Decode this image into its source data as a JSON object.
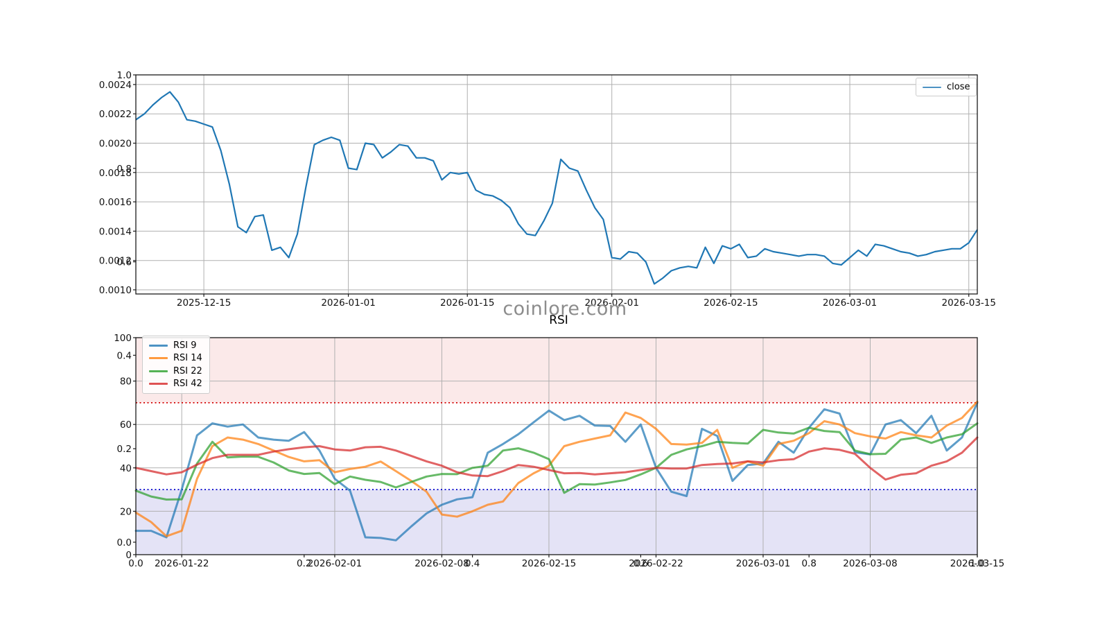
{
  "figure": {
    "watermark": "coinlore.com",
    "rsi_title": "RSI",
    "background": "#ffffff",
    "grid_color": "#b0b0b0",
    "spine_color": "#1a1a1a",
    "tick_label_color": "#111111",
    "overlay_axis": {
      "left_tick_labels": [
        "1.0",
        "0.8",
        "0.6",
        "0.4",
        "0.2",
        "0.0"
      ],
      "bottom_tick_labels": [
        "0.0",
        "0.2",
        "0.4",
        "0.6",
        "0.8",
        "1.0"
      ]
    }
  },
  "chart_data": [
    {
      "type": "line",
      "title": "",
      "legend_position": "upper right",
      "grid": true,
      "ylim": [
        0.000972,
        0.002466
      ],
      "y_tick_labels": [
        "0.0010",
        "0.0012",
        "0.0014",
        "0.0016",
        "0.0018",
        "0.0020",
        "0.0022",
        "0.0024"
      ],
      "y_tick_values": [
        0.001,
        0.0012,
        0.0014,
        0.0016,
        0.0018,
        0.002,
        0.0022,
        0.0024
      ],
      "x_tick_labels": [
        "2025-12-15",
        "2026-01-01",
        "2026-01-15",
        "2026-02-01",
        "2026-02-15",
        "2026-03-01",
        "2026-03-15"
      ],
      "x_tick_index": [
        8,
        25,
        39,
        56,
        70,
        84,
        98
      ],
      "x_start_date": "2025-12-07",
      "series": [
        {
          "name": "close",
          "color": "#1f77b4",
          "width": 2.2,
          "opacity": 1,
          "values": [
            0.00216,
            0.0022,
            0.00226,
            0.00231,
            0.00235,
            0.00228,
            0.00216,
            0.00215,
            0.00213,
            0.00211,
            0.00195,
            0.00172,
            0.00143,
            0.00139,
            0.0015,
            0.00151,
            0.00127,
            0.00129,
            0.00122,
            0.00138,
            0.0017,
            0.00199,
            0.00202,
            0.00204,
            0.00202,
            0.00183,
            0.00182,
            0.002,
            0.00199,
            0.0019,
            0.00194,
            0.00199,
            0.00198,
            0.0019,
            0.0019,
            0.00188,
            0.00175,
            0.0018,
            0.00179,
            0.0018,
            0.00168,
            0.00165,
            0.00164,
            0.00161,
            0.00156,
            0.00145,
            0.00138,
            0.00137,
            0.00147,
            0.00159,
            0.00189,
            0.00183,
            0.00181,
            0.00168,
            0.00156,
            0.00148,
            0.00122,
            0.00121,
            0.00126,
            0.00125,
            0.00119,
            0.00104,
            0.00108,
            0.00113,
            0.00115,
            0.00116,
            0.00115,
            0.00129,
            0.00118,
            0.0013,
            0.00128,
            0.00131,
            0.00122,
            0.00123,
            0.00128,
            0.00126,
            0.00125,
            0.00124,
            0.00123,
            0.00124,
            0.00124,
            0.00123,
            0.00118,
            0.00117,
            0.00122,
            0.00127,
            0.00123,
            0.00131,
            0.0013,
            0.00128,
            0.00126,
            0.00125,
            0.00123,
            0.00124,
            0.00126,
            0.00127,
            0.00128,
            0.00128,
            0.00132,
            0.00141
          ]
        }
      ]
    },
    {
      "type": "line",
      "title": "RSI",
      "legend_position": "upper left",
      "grid": true,
      "ylim": [
        0,
        100
      ],
      "y_tick_labels": [
        "0",
        "20",
        "40",
        "60",
        "80",
        "100"
      ],
      "y_tick_values": [
        0,
        20,
        40,
        60,
        80,
        100
      ],
      "x_tick_labels": [
        "2026-01-22",
        "2026-02-01",
        "2026-02-08",
        "2026-02-15",
        "2026-02-22",
        "2026-03-01",
        "2026-03-08",
        "2026-03-15"
      ],
      "x_tick_index": [
        3,
        13,
        20,
        27,
        34,
        41,
        48,
        55
      ],
      "x_start_date": "2026-01-19",
      "overbought_level": 70,
      "oversold_level": 30,
      "overbought_band_color": "#fbe9e9",
      "oversold_band_color": "#e4e3f6",
      "overbought_line_color": "#d40000",
      "oversold_line_color": "#0000cc",
      "series": [
        {
          "name": "RSI 9",
          "color": "#1f77b4",
          "width": 3,
          "opacity": 0.72,
          "values": [
            11,
            11,
            8,
            30,
            55,
            60.5,
            59,
            60,
            54,
            53,
            52.5,
            56.5,
            48,
            35,
            29.5,
            8,
            7.7,
            6.6,
            13,
            19,
            23,
            25.5,
            26.5,
            47,
            51,
            55.5,
            61,
            66.4,
            62,
            64,
            59.5,
            59.3,
            52,
            60,
            40,
            29,
            27,
            58,
            54.7,
            34,
            41.3,
            42,
            52,
            47,
            58.5,
            67,
            65,
            47.2,
            46.2,
            60,
            62,
            56,
            64,
            48,
            54,
            70
          ]
        },
        {
          "name": "RSI 14",
          "color": "#ff7f0e",
          "width": 3,
          "opacity": 0.72,
          "values": [
            19.4,
            15,
            8.5,
            11,
            35,
            50,
            54,
            53,
            51,
            48,
            45,
            43,
            43.5,
            38,
            39.5,
            40.5,
            42.9,
            38.5,
            34,
            29,
            18.5,
            17.5,
            20,
            23,
            24.5,
            33,
            37.5,
            41,
            50,
            52,
            53.5,
            55,
            65.5,
            63,
            58,
            51,
            50.7,
            51.5,
            57.5,
            40,
            43,
            41,
            51,
            52.5,
            56,
            61.5,
            60,
            56,
            54.5,
            53.5,
            56.5,
            55,
            54,
            59.5,
            63,
            70.5
          ]
        },
        {
          "name": "RSI 22",
          "color": "#2ca02c",
          "width": 3,
          "opacity": 0.72,
          "values": [
            29.5,
            26.8,
            25.4,
            25.5,
            42,
            52,
            44.8,
            45.2,
            45.1,
            42.5,
            38.8,
            37.2,
            37.6,
            32.5,
            36,
            34.5,
            33.5,
            31,
            33.5,
            36,
            37.2,
            37.1,
            40,
            41,
            48,
            49,
            47,
            44,
            28.5,
            32.5,
            32.3,
            33.3,
            34.4,
            37,
            40,
            46,
            48.5,
            50,
            52,
            51.5,
            51.2,
            57.5,
            56.3,
            55.8,
            58.5,
            57,
            56.5,
            48,
            46.3,
            46.5,
            53,
            54,
            51.5,
            54,
            55.5,
            60.5
          ]
        },
        {
          "name": "RSI 42",
          "color": "#d62728",
          "width": 3,
          "opacity": 0.72,
          "values": [
            40,
            38.5,
            37,
            38,
            41.5,
            44.5,
            46,
            46,
            46,
            47.5,
            48.6,
            49.5,
            50,
            48.5,
            48,
            49.5,
            49.7,
            48,
            45.5,
            43,
            41,
            38,
            36.5,
            36.2,
            38.5,
            41.3,
            40.5,
            39,
            37.5,
            37.6,
            37,
            37.5,
            38,
            39,
            40,
            39.7,
            39.7,
            41.3,
            41.8,
            42,
            43,
            42.5,
            43.5,
            44,
            47.5,
            49,
            48.3,
            46.5,
            40,
            34.6,
            36.8,
            37.5,
            41,
            43,
            47,
            54
          ]
        }
      ]
    }
  ]
}
